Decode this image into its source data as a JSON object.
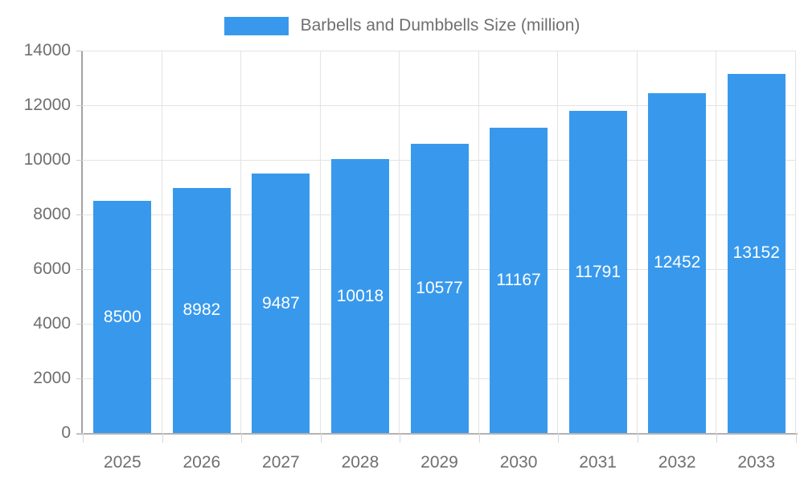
{
  "legend": {
    "label": "Barbells and Dumbbells Size (million)"
  },
  "chart_data": {
    "type": "bar",
    "title": "Barbells and Dumbbells Size (million)",
    "series_name": "Barbells and Dumbbells Size (million)",
    "categories": [
      "2025",
      "2026",
      "2027",
      "2028",
      "2029",
      "2030",
      "2031",
      "2032",
      "2033"
    ],
    "values": [
      8500,
      8982,
      9487,
      10018,
      10577,
      11167,
      11791,
      12452,
      13152
    ],
    "value_labels": [
      "8500",
      "8982",
      "9487",
      "10018",
      "10577",
      "11167",
      "11791",
      "12452",
      "13152"
    ],
    "xlabel": "",
    "ylabel": "",
    "ylim": [
      0,
      14000
    ],
    "yticks": [
      0,
      2000,
      4000,
      6000,
      8000,
      10000,
      12000,
      14000
    ],
    "grid": true,
    "legend_position": "top-center",
    "bar_color": "#3899ec",
    "value_label_color": "#ffffff",
    "axis_text_color": "#6f6f6f",
    "grid_color": "#e3e3e3"
  }
}
